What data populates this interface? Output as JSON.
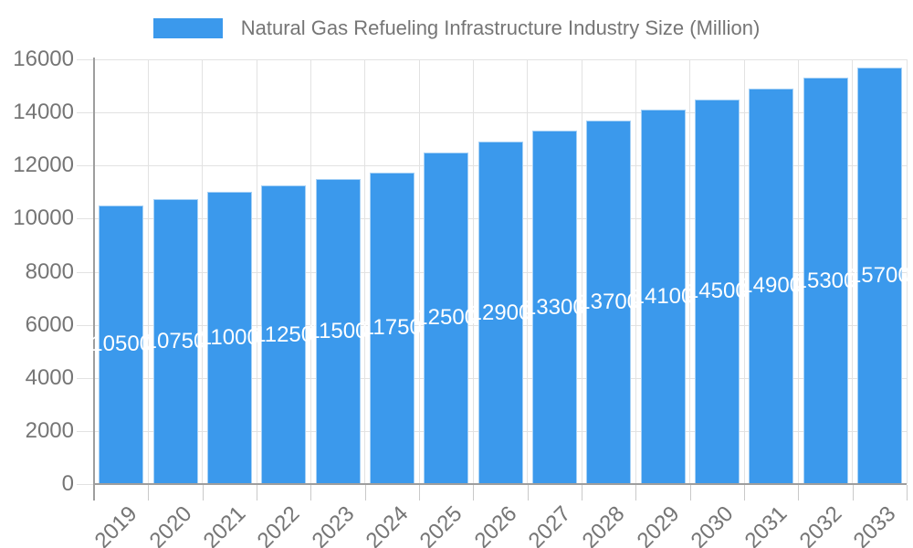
{
  "legend": {
    "label": "Natural Gas Refueling Infrastructure Industry Size (Million)"
  },
  "chart_data": {
    "type": "bar",
    "title": "Natural Gas Refueling Infrastructure Industry Size (Million)",
    "categories": [
      "2019",
      "2020",
      "2021",
      "2022",
      "2023",
      "2024",
      "2025",
      "2026",
      "2027",
      "2028",
      "2029",
      "2030",
      "2031",
      "2032",
      "2033"
    ],
    "series": [
      {
        "name": "Natural Gas Refueling Infrastructure Industry Size (Million)",
        "values": [
          10500,
          10750,
          11000,
          11250,
          11500,
          11750,
          12500,
          12900,
          13300,
          13700,
          14100,
          14500,
          14900,
          15300,
          15700
        ]
      }
    ],
    "bar_value_labels": [
      "10500",
      "10750",
      "11000",
      "11250",
      "11500",
      "11750",
      "12500",
      "12900",
      "13300",
      "13700",
      "14100",
      "14500",
      "14900",
      "15300",
      "15700"
    ],
    "xlabel": "",
    "ylabel": "",
    "ylim": [
      0,
      16000
    ],
    "yticks": [
      0,
      2000,
      4000,
      6000,
      8000,
      10000,
      12000,
      14000,
      16000
    ],
    "grid": true,
    "legend_position": "top",
    "x_label_rotation_deg": -45,
    "colors": {
      "bar": "#3b99ec",
      "bar_label": "#ffffff",
      "axis_text": "#757575",
      "gridline": "#e2e2e2",
      "y_tick": "#e2e2e2",
      "x_tick": "#c9c9c9",
      "axis_line": "#9e9e9e"
    }
  }
}
